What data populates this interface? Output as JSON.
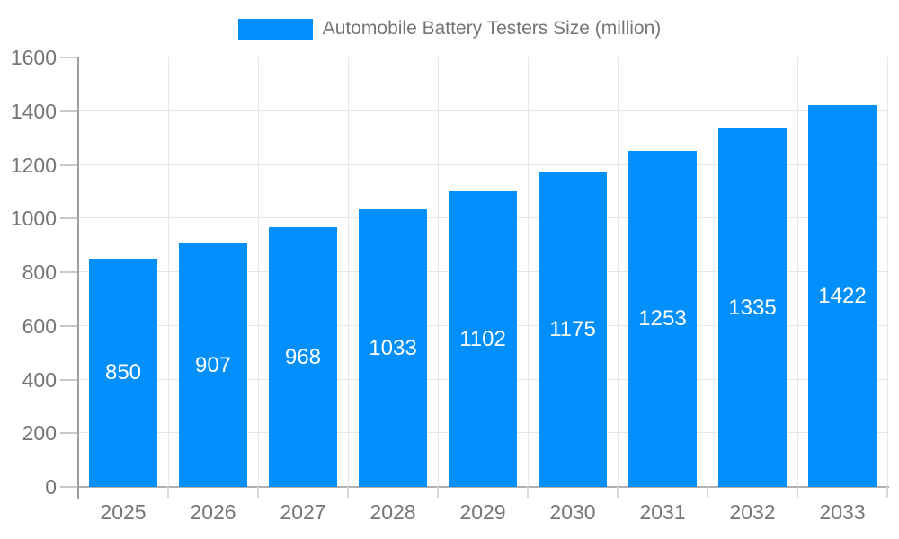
{
  "chart_data": {
    "type": "bar",
    "title": "",
    "series_name": "Automobile Battery Testers Size (million)",
    "categories": [
      "2025",
      "2026",
      "2027",
      "2028",
      "2029",
      "2030",
      "2031",
      "2032",
      "2033"
    ],
    "values": [
      850,
      907,
      968,
      1033,
      1102,
      1175,
      1253,
      1335,
      1422
    ],
    "xlabel": "",
    "ylabel": "",
    "ylim": [
      0,
      1600
    ],
    "ytick_step": 200,
    "y_tick_labels": [
      "0",
      "200",
      "400",
      "600",
      "800",
      "1000",
      "1200",
      "1400",
      "1600"
    ],
    "grid": true,
    "legend_position": "top",
    "data_labels_position": "inside-center",
    "colors": {
      "bar": "#008FFB",
      "bar_label_text": "#ffffff",
      "axis_text": "#757575",
      "legend_text": "#757575",
      "gridline": "#e7e7e7",
      "y_tick": "#c9c9c9",
      "x_tick": "#d9d9d9",
      "baseline": "#b0b0b0",
      "axis_line": "#9e9e9e",
      "background": "#ffffff"
    }
  }
}
